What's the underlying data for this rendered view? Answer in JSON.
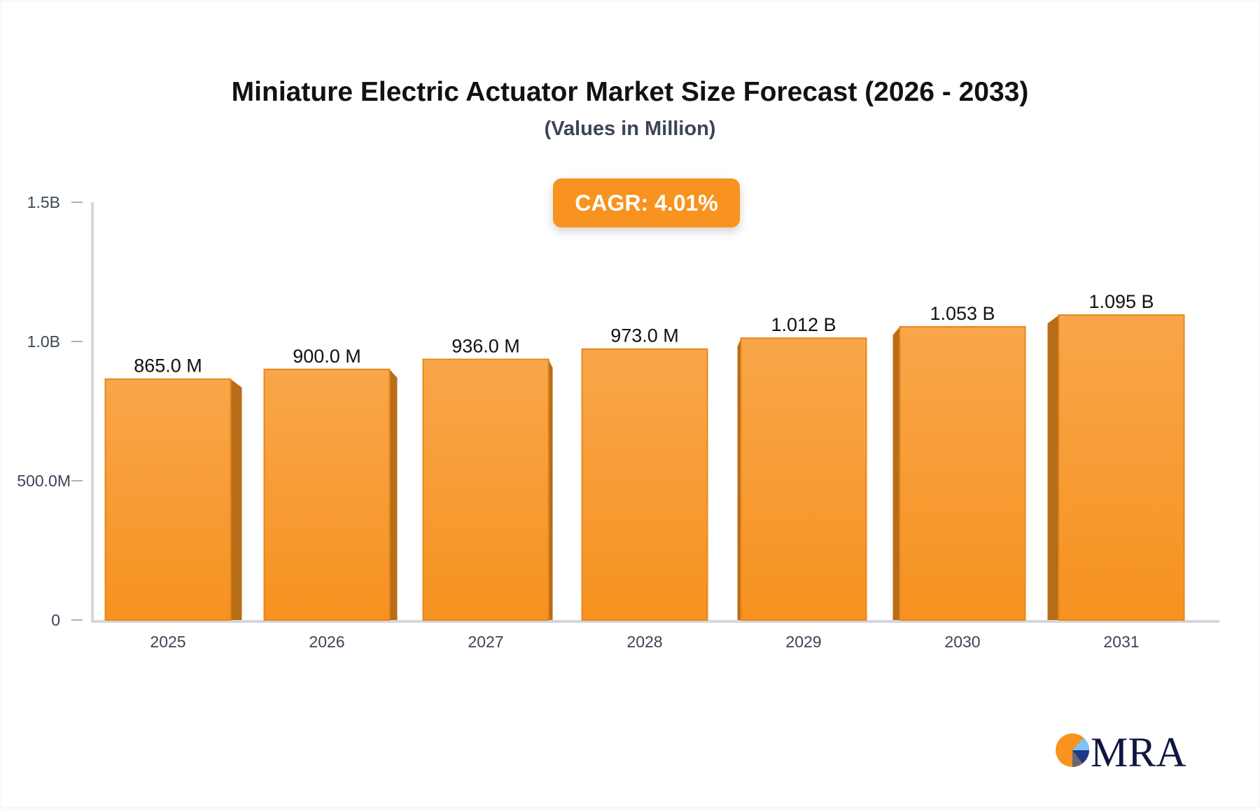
{
  "chart_data": {
    "type": "bar",
    "title": "Miniature Electric Actuator Market Size Forecast (2026 - 2033)",
    "subtitle": "(Values in Million)",
    "categories": [
      "2025",
      "2026",
      "2027",
      "2028",
      "2029",
      "2030",
      "2031"
    ],
    "values": [
      865.0,
      900.0,
      936.0,
      973.0,
      1012,
      1053,
      1095
    ],
    "data_labels": [
      "865.0 M",
      "900.0 M",
      "936.0 M",
      "973.0 M",
      "1.012 B",
      "1.053 B",
      "1.095 B"
    ],
    "ylim": [
      0,
      1500
    ],
    "yticks": [
      0,
      500,
      1000,
      1500
    ],
    "ytick_labels": [
      "0",
      "500.0M",
      "1.0B",
      "1.5B"
    ],
    "grid": false,
    "bar_color": "#f7931e",
    "bar_side_color": "#b86d18"
  },
  "badge": {
    "cagr_label": "CAGR: 4.01%",
    "color": "#f7931e"
  },
  "logo": {
    "text": "MRA"
  }
}
